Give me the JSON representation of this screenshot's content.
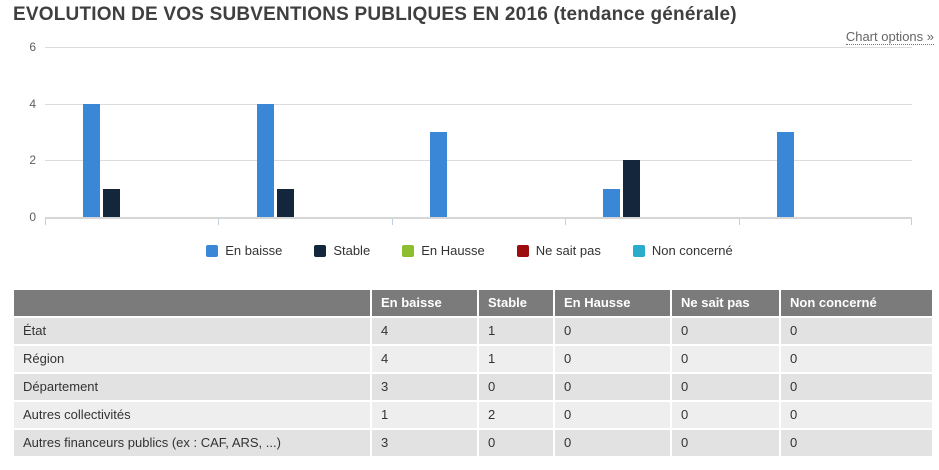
{
  "page": {
    "title": "EVOLUTION DE VOS SUBVENTIONS PUBLIQUES EN 2016 (tendance générale)",
    "chart_options_label": "Chart options »"
  },
  "chart_data": {
    "type": "bar",
    "title": "EVOLUTION DE VOS SUBVENTIONS PUBLIQUES EN 2016 (tendance générale)",
    "categories": [
      "État",
      "Région",
      "Département",
      "Autres collectivités",
      "Autres financeurs publics (ex : CAF, ARS, ...)"
    ],
    "series": [
      {
        "name": "En baisse",
        "color": "#3a87d8",
        "values": [
          4,
          4,
          3,
          1,
          3
        ]
      },
      {
        "name": "Stable",
        "color": "#13263b",
        "values": [
          1,
          1,
          0,
          2,
          0
        ]
      },
      {
        "name": "En Hausse",
        "color": "#8cbe2f",
        "values": [
          0,
          0,
          0,
          0,
          0
        ]
      },
      {
        "name": "Ne sait pas",
        "color": "#9b0d0f",
        "values": [
          0,
          0,
          0,
          0,
          0
        ]
      },
      {
        "name": "Non concerné",
        "color": "#2aadcb",
        "values": [
          0,
          0,
          0,
          0,
          0
        ]
      }
    ],
    "xlabel": "",
    "ylabel": "",
    "ylim": [
      0,
      6
    ],
    "yticks": [
      0,
      2,
      4,
      6
    ],
    "grid": true,
    "legend_position": "bottom",
    "x_category_labels_visible": false
  },
  "table": {
    "columns": [
      "",
      "En baisse",
      "Stable",
      "En Hausse",
      "Ne sait pas",
      "Non concerné"
    ],
    "rows": [
      {
        "label": "État",
        "values": [
          4,
          1,
          0,
          0,
          0
        ]
      },
      {
        "label": "Région",
        "values": [
          4,
          1,
          0,
          0,
          0
        ]
      },
      {
        "label": "Département",
        "values": [
          3,
          0,
          0,
          0,
          0
        ]
      },
      {
        "label": "Autres collectivités",
        "values": [
          1,
          2,
          0,
          0,
          0
        ]
      },
      {
        "label": "Autres financeurs publics (ex : CAF, ARS, ...)",
        "values": [
          3,
          0,
          0,
          0,
          0
        ]
      }
    ]
  },
  "colors": {
    "table_header_bg": "#7b7b7b",
    "row_odd_bg": "#e2e2e2",
    "row_even_bg": "#eeeeee",
    "grid_line": "#dcdcdc",
    "axis_tick": "#c0d0e0"
  }
}
